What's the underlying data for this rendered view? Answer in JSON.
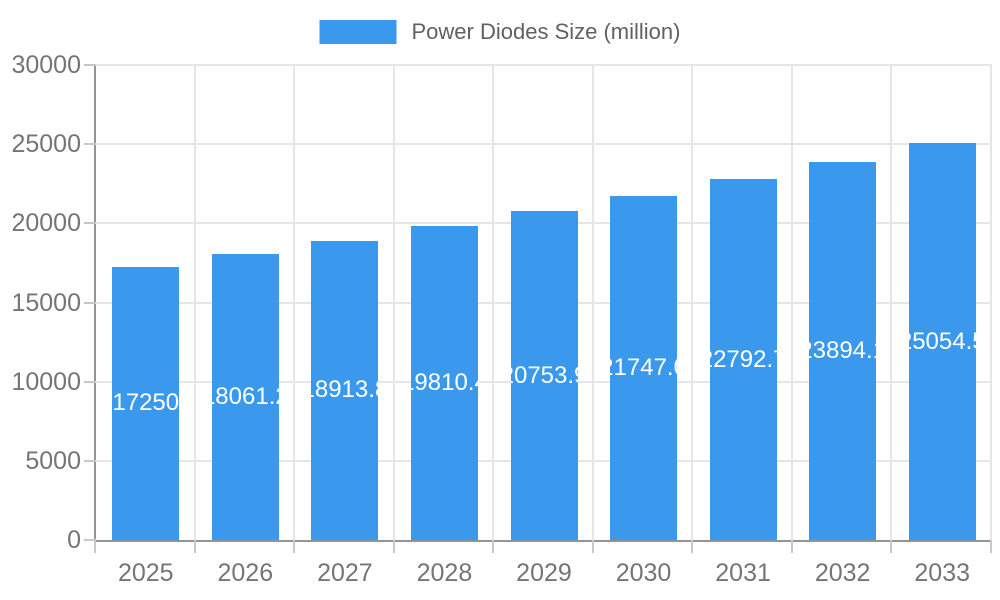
{
  "legend": {
    "label": "Power Diodes Size (million)"
  },
  "chart_data": {
    "type": "bar",
    "title": "Power Diodes Size (million)",
    "categories": [
      "2025",
      "2026",
      "2027",
      "2028",
      "2029",
      "2030",
      "2031",
      "2032",
      "2033"
    ],
    "values": [
      17250,
      18061.2,
      18913.8,
      19810.4,
      20753.9,
      21747.0,
      22792.7,
      23894.1,
      25054.5
    ],
    "bar_labels": [
      "17250",
      "18061.2",
      "18913.8",
      "19810.4",
      "20753.9",
      "21747.0",
      "22792.7",
      "23894.1",
      "25054.5"
    ],
    "xlabel": "",
    "ylabel": "",
    "ylim": [
      0,
      30000
    ],
    "yticks": [
      0,
      5000,
      10000,
      15000,
      20000,
      25000,
      30000
    ],
    "grid": true,
    "legend_position": "top",
    "colors": {
      "bar": "#3A99EC",
      "value_label": "#ffffff",
      "axis_text": "#757575",
      "legend_text": "#616161",
      "grid_line": "#e6e6e6",
      "tick_line": "#c8c8c8",
      "axis_line": "#949494",
      "background": "#ffffff"
    }
  }
}
